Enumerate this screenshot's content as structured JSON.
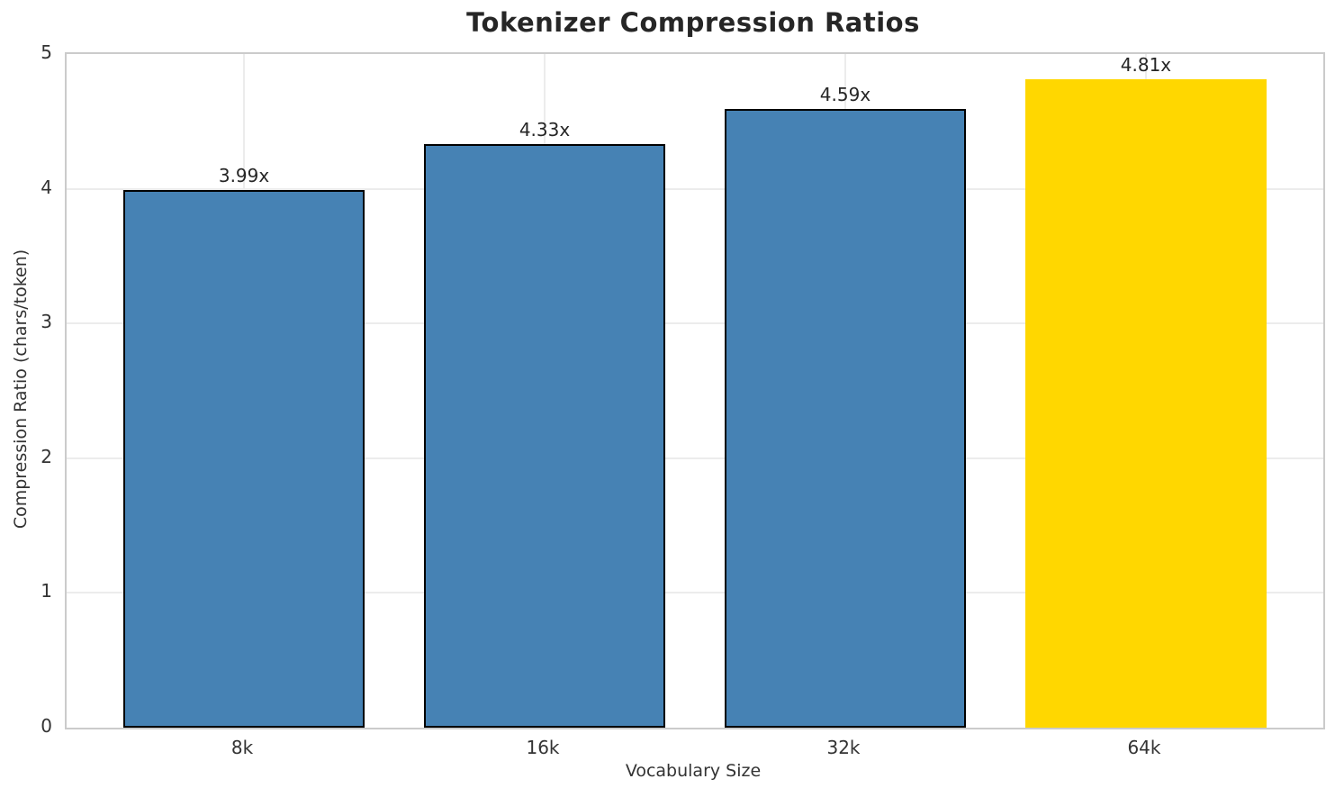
{
  "chart_data": {
    "type": "bar",
    "title": "Tokenizer Compression Ratios",
    "xlabel": "Vocabulary Size",
    "ylabel": "Compression Ratio (chars/token)",
    "categories": [
      "8k",
      "16k",
      "32k",
      "64k"
    ],
    "values": [
      3.99,
      4.33,
      4.59,
      4.81
    ],
    "bar_labels": [
      "3.99x",
      "4.33x",
      "4.59x",
      "4.81x"
    ],
    "ylim": [
      0,
      5
    ],
    "yticks": [
      0,
      1,
      2,
      3,
      4,
      5
    ],
    "grid": true,
    "legend": "none",
    "bar_colors": [
      "#4682B4",
      "#4682B4",
      "#4682B4",
      "#FFD700"
    ],
    "bar_edge_colors": [
      "#000000",
      "#000000",
      "#000000",
      "none"
    ],
    "highlighted_category": "64k"
  },
  "style": {
    "background": "#FFFFFF",
    "bar_color": "#4682B4",
    "highlight_bar_color": "#FFD700",
    "bar_edge_color": "#000000",
    "grid_color": "#ECECEC",
    "spine_color": "#CBCBCB",
    "tick_text_color": "#333333",
    "title_color": "#262626"
  }
}
